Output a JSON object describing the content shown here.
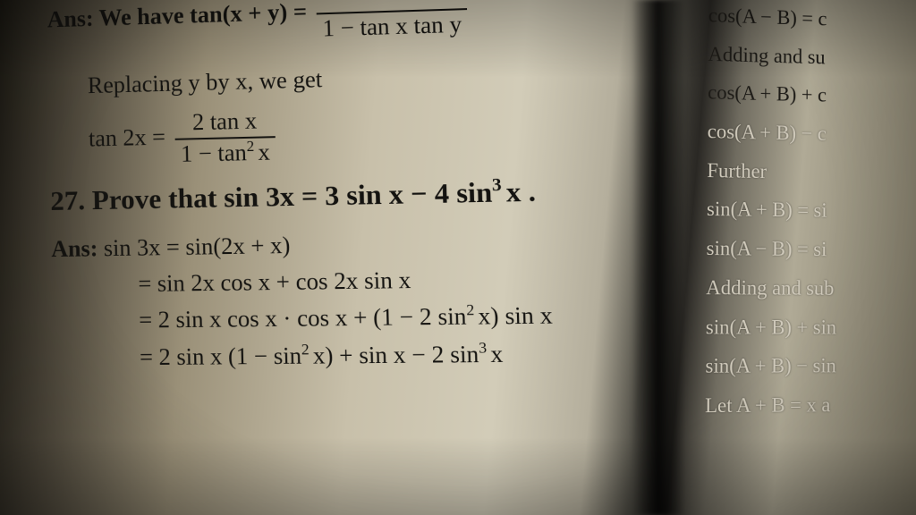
{
  "left": {
    "line1_pre": "Ans: We have tan(x + y) =",
    "line1_frac_den_only": "1 − tan x tan y",
    "line2": "Replacing y by x, we get",
    "line3_lhs": "tan 2x =",
    "line3_num": "2 tan x",
    "line3_den": "1 − tan² x",
    "q27_label": "27. Prove that ",
    "q27_eq": "sin 3x = 3 sin x − 4 sin³ x .",
    "ans_label": "Ans:",
    "ans_l1": "sin 3x = sin(2x + x)",
    "ans_l2": "= sin 2x cos x + cos 2x sin x",
    "ans_l3": "= 2 sin x cos x · cos x + (1 − 2 sin² x) sin x",
    "ans_l4": "= 2 sin x (1 − sin² x) + sin x − 2 sin³ x"
  },
  "right": {
    "r1": "cos(A − B) = c",
    "r2": "Adding and su",
    "r3": "cos(A + B) + c",
    "r4": "cos(A + B) − c",
    "r5": "Further",
    "r6": "sin(A + B) = si",
    "r7": "sin(A − B) = si",
    "r8": "Adding and sub",
    "r9": "sin(A + B) + sin",
    "r10": "sin(A + B) − sin",
    "r11": "Let A + B = x a"
  },
  "style": {
    "leftFontSize": 26,
    "rightFontSize": 23
  }
}
